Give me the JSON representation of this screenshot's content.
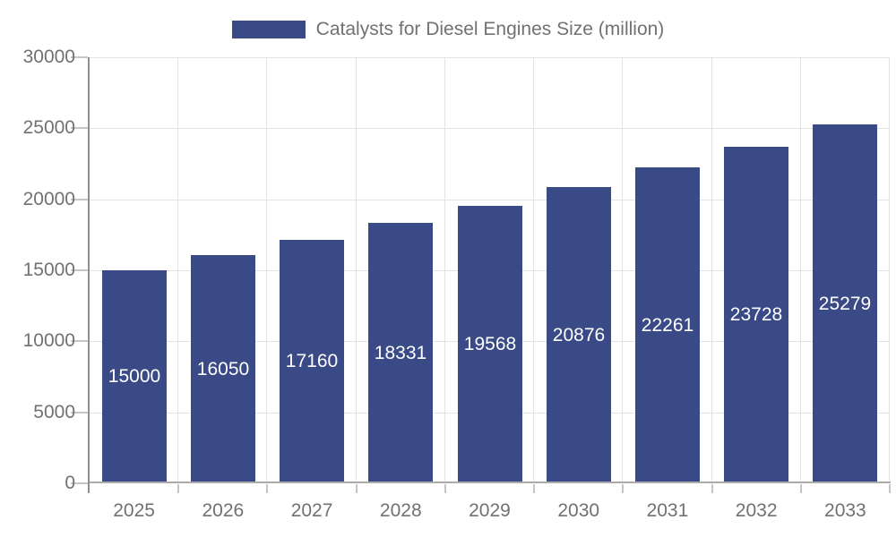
{
  "legend": {
    "label": "Catalysts for Diesel Engines Size (million)"
  },
  "chart_data": {
    "type": "bar",
    "title": "Catalysts for Diesel Engines Size (million)",
    "categories": [
      "2025",
      "2026",
      "2027",
      "2028",
      "2029",
      "2030",
      "2031",
      "2032",
      "2033"
    ],
    "values": [
      15000,
      16050,
      17160,
      18331,
      19568,
      20876,
      22261,
      23728,
      25279
    ],
    "bar_value_labels": [
      "15000",
      "16050",
      "17160",
      "18331",
      "19568",
      "20876",
      "22261",
      "23728",
      "25279"
    ],
    "xlabel": "",
    "ylabel": "",
    "ylim": [
      0,
      30000
    ],
    "yticks": [
      0,
      5000,
      10000,
      15000,
      20000,
      25000,
      30000
    ],
    "grid": true,
    "legend_position": "top-center",
    "bar_labels_inside": "vertically-centered",
    "colors": {
      "bar": "#394a87",
      "bar_label": "#ffffff",
      "axis_text": "#717171",
      "grid": "#e3e3e3",
      "y_axis_line": "#8f8f8f",
      "x_axis_line": "#ababab",
      "tick": "#c6c6c6",
      "background": "#ffffff"
    }
  }
}
